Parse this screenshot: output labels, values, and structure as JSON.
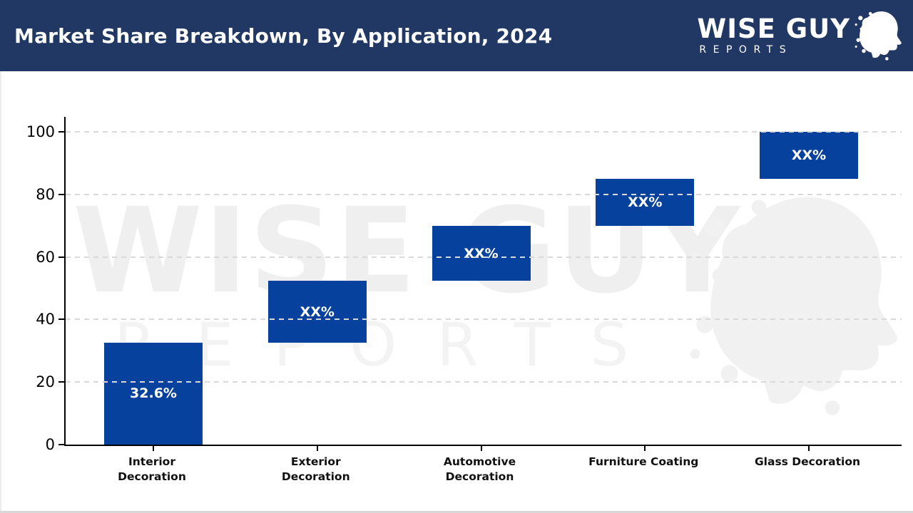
{
  "header": {
    "title": "Market Share Breakdown, By Application, 2024",
    "logo": {
      "line1": "WISE GUY",
      "line2": "REPORTS"
    }
  },
  "watermark": {
    "line1": "WISE GUY",
    "line2": "REPORTS"
  },
  "chart_data": {
    "type": "bar",
    "subtype": "waterfall",
    "title": "Market Share Breakdown, By Application, 2024",
    "categories": [
      "Interior Decoration",
      "Exterior Decoration",
      "Automotive Decoration",
      "Furniture Coating",
      "Glass Decoration"
    ],
    "category_lines": [
      [
        "Interior",
        "Decoration"
      ],
      [
        "Exterior",
        "Decoration"
      ],
      [
        "Automotive",
        "Decoration"
      ],
      [
        "Furniture Coating"
      ],
      [
        "Glass Decoration"
      ]
    ],
    "segments": [
      {
        "start": 0,
        "end": 32.6,
        "label": "32.6%"
      },
      {
        "start": 32.6,
        "end": 52.3,
        "label": "XX%"
      },
      {
        "start": 52.3,
        "end": 70,
        "label": "XX%"
      },
      {
        "start": 70,
        "end": 85,
        "label": "XX%"
      },
      {
        "start": 85,
        "end": 100,
        "label": "XX%"
      }
    ],
    "xlabel": "",
    "ylabel": "",
    "yticks": [
      0,
      20,
      40,
      60,
      80,
      100
    ],
    "ylim": [
      0,
      105
    ],
    "grid": true,
    "legend_position": "none",
    "bar_color": "#06419d",
    "value_label_color": "#ffffff",
    "header_color": "#223864"
  }
}
